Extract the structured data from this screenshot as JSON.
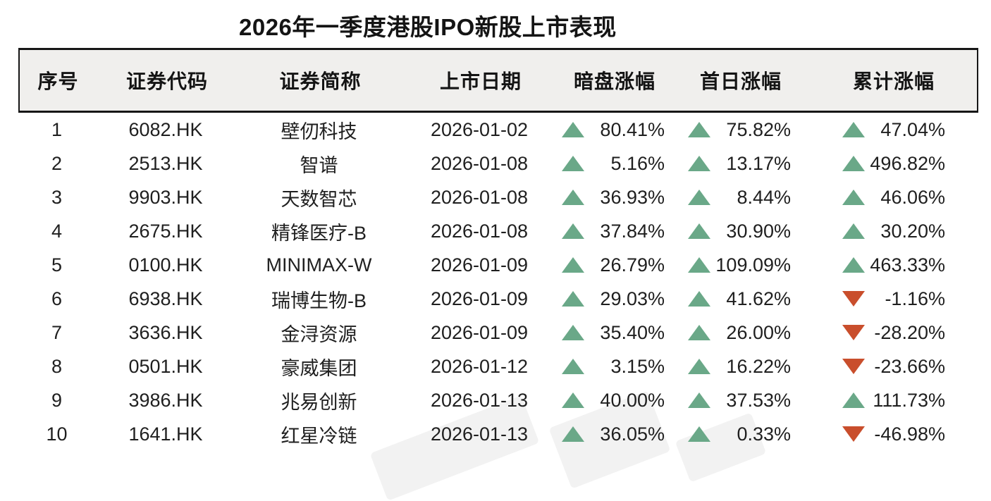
{
  "title": "2026年一季度港股IPO新股上市表现",
  "chart_data": {
    "type": "table",
    "title": "2026年一季度港股IPO新股上市表现",
    "columns": [
      "序号",
      "证券代码",
      "证券简称",
      "上市日期",
      "暗盘涨幅",
      "首日涨幅",
      "累计涨幅"
    ],
    "rows": [
      [
        "1",
        "6082.HK",
        "壁仞科技",
        "2026-01-02",
        "80.41%",
        "75.82%",
        "47.04%"
      ],
      [
        "2",
        "2513.HK",
        "智谱",
        "2026-01-08",
        "5.16%",
        "13.17%",
        "496.82%"
      ],
      [
        "3",
        "9903.HK",
        "天数智芯",
        "2026-01-08",
        "36.93%",
        "8.44%",
        "46.06%"
      ],
      [
        "4",
        "2675.HK",
        "精锋医疗-B",
        "2026-01-08",
        "37.84%",
        "30.90%",
        "30.20%"
      ],
      [
        "5",
        "0100.HK",
        "MINIMAX-W",
        "2026-01-09",
        "26.79%",
        "109.09%",
        "463.33%"
      ],
      [
        "6",
        "6938.HK",
        "瑞博生物-B",
        "2026-01-09",
        "29.03%",
        "41.62%",
        "-1.16%"
      ],
      [
        "7",
        "3636.HK",
        "金浔资源",
        "2026-01-09",
        "35.40%",
        "26.00%",
        "-28.20%"
      ],
      [
        "8",
        "0501.HK",
        "豪威集团",
        "2026-01-12",
        "3.15%",
        "16.22%",
        "-23.66%"
      ],
      [
        "9",
        "3986.HK",
        "兆易创新",
        "2026-01-13",
        "40.00%",
        "37.53%",
        "111.73%"
      ],
      [
        "10",
        "1641.HK",
        "红星冷链",
        "2026-01-13",
        "36.05%",
        "0.33%",
        "-46.98%"
      ]
    ],
    "notes": {
      "up_marker": "green upward triangle for positive change",
      "down_marker": "red downward triangle for negative change"
    }
  },
  "colors": {
    "up_triangle": "#6aa888",
    "down_triangle": "#c94e2c",
    "header_bg": "#f0efed",
    "border_line": "#161616"
  },
  "icons": {
    "up": "up-triangle-icon",
    "down": "down-triangle-icon"
  }
}
